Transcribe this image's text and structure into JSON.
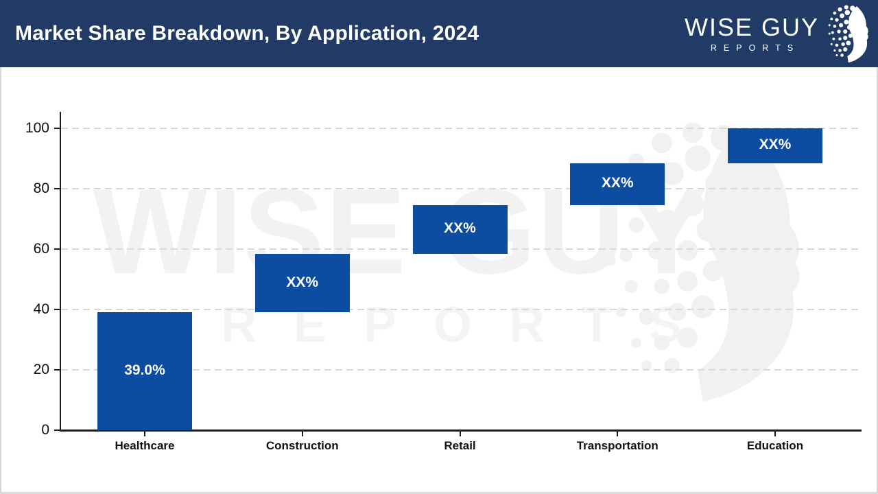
{
  "header": {
    "title": "Market Share Breakdown, By Application, 2024",
    "logo": {
      "line1": "WISE GUY",
      "line2": "REPORTS"
    }
  },
  "watermark": {
    "line1": "WISE GUY",
    "line2": "REPORTS"
  },
  "colors": {
    "header_bg": "#213a66",
    "bar": "#0c4da1",
    "bar_label": "#ffffff",
    "grid": "#d9d9d9",
    "axis": "#1c1c1c",
    "tick_label": "#111111",
    "watermark": "#f2f2f2",
    "body_border": "#d9d9d9"
  },
  "chart_data": {
    "type": "bar",
    "variant": "waterfall",
    "title": "Market Share Breakdown, By Application, 2024",
    "categories": [
      "Healthcare",
      "Construction",
      "Retail",
      "Transportation",
      "Education"
    ],
    "segments": [
      {
        "category": "Healthcare",
        "start": 0,
        "end": 39.0,
        "label": "39.0%"
      },
      {
        "category": "Construction",
        "start": 39.0,
        "end": 58.5,
        "label": "XX%"
      },
      {
        "category": "Retail",
        "start": 58.5,
        "end": 74.5,
        "label": "XX%"
      },
      {
        "category": "Transportation",
        "start": 74.5,
        "end": 88.5,
        "label": "XX%"
      },
      {
        "category": "Education",
        "start": 88.5,
        "end": 100.0,
        "label": "XX%"
      }
    ],
    "values": [
      39.0,
      19.5,
      16.0,
      14.0,
      11.5
    ],
    "bar_labels": [
      "39.0%",
      "XX%",
      "XX%",
      "XX%",
      "XX%"
    ],
    "ylim": [
      0,
      105
    ],
    "yticks": [
      0,
      20,
      40,
      60,
      80,
      100
    ],
    "xlabel": "",
    "ylabel": "",
    "grid": "horizontal-dashed",
    "legend": "none"
  }
}
